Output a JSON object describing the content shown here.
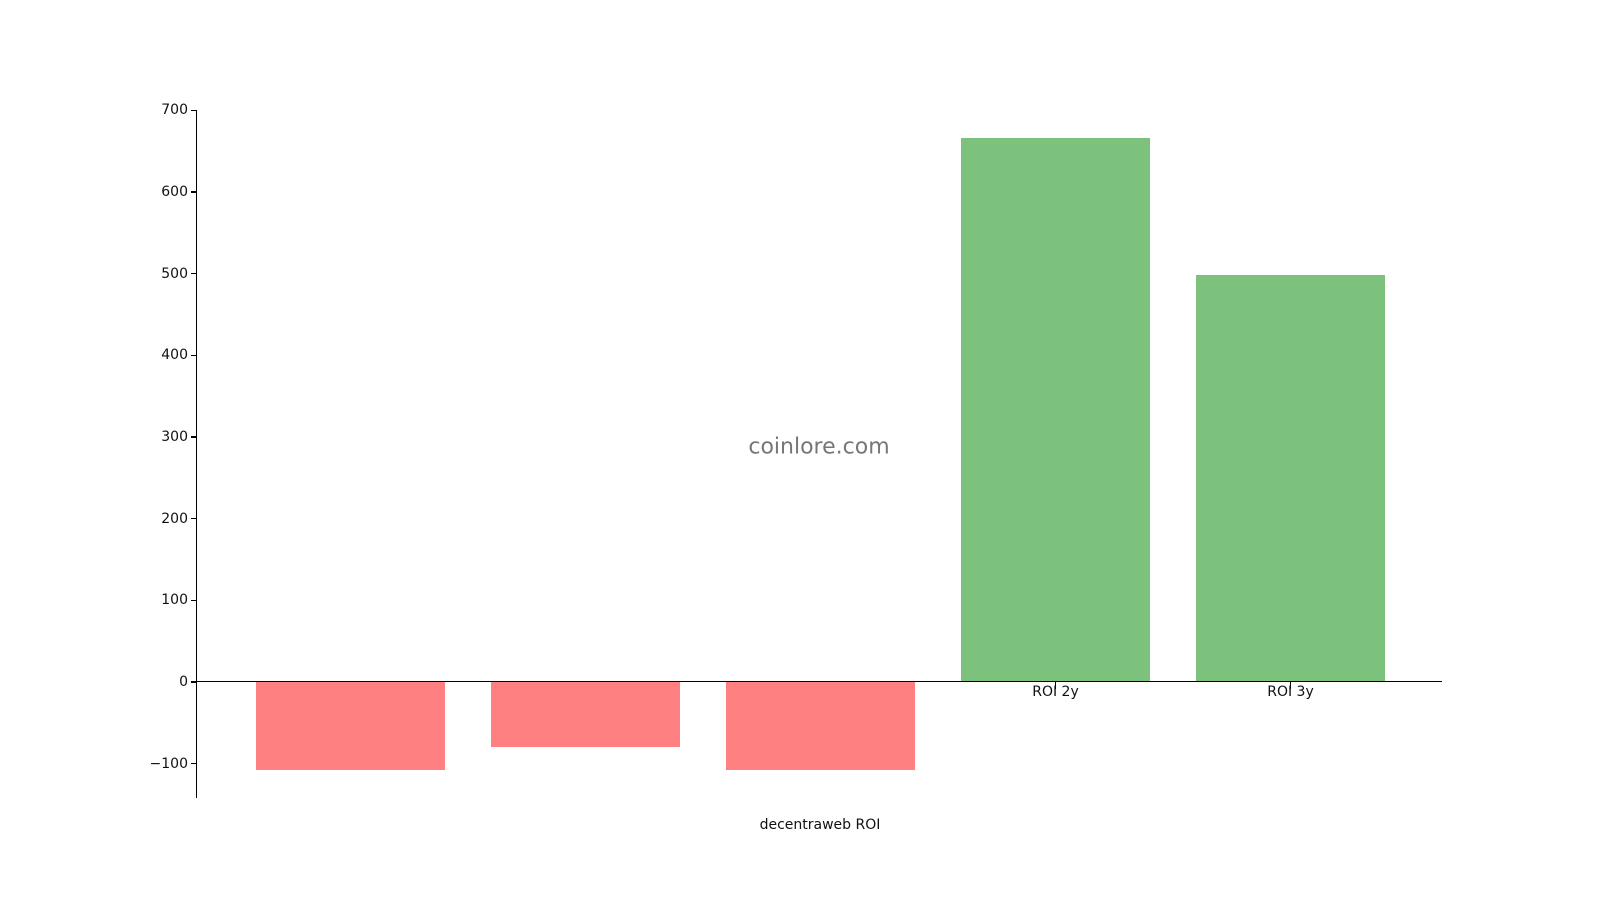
{
  "watermark": "coinlore.com",
  "chart_data": {
    "type": "bar",
    "title": "",
    "xlabel": "decentraweb ROI",
    "ylabel": "",
    "categories": [
      "",
      "",
      "",
      "ROI 2y",
      "ROI 3y"
    ],
    "values": [
      -108,
      -80,
      -108,
      666,
      498
    ],
    "series": [
      {
        "name": "decentraweb ROI %",
        "values": [
          -108,
          -80,
          -108,
          666,
          498
        ]
      }
    ],
    "y_ticks": [
      700,
      600,
      500,
      400,
      300,
      200,
      100,
      0,
      -100
    ],
    "ylim": [
      -142,
      701
    ],
    "xlim_note": "5 categories, bars hide x tick labels of negative bars",
    "grid": false,
    "legend_position": "none",
    "positive_color": "#7cc17c",
    "negative_color": "#ff8080",
    "axis_color": "#000000",
    "tick_label_color": "#111111",
    "watermark_color": "#777777",
    "watermark_text": "coinlore.com"
  }
}
